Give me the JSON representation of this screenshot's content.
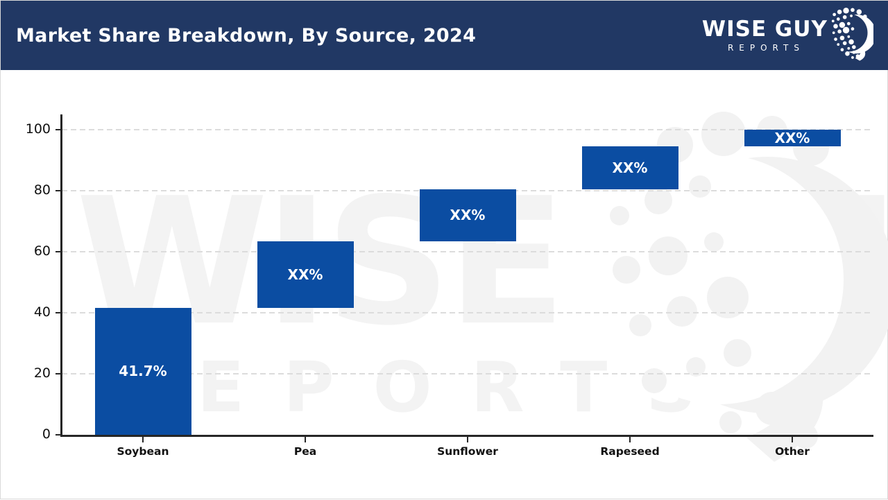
{
  "header": {
    "title": "Market Share Breakdown, By Source, 2024",
    "bg_color": "#213864",
    "logo": {
      "wordmark": "WISE GUY",
      "subtext": "REPORTS"
    }
  },
  "watermark": {
    "line1": "WISE GUY",
    "line2": "REPORTS"
  },
  "chart_data": {
    "type": "bar",
    "variant": "waterfall",
    "title": "Market Share Breakdown, By Source, 2024",
    "categories": [
      "Soybean",
      "Pea",
      "Sunflower",
      "Rapeseed",
      "Other"
    ],
    "series": [
      {
        "name": "Market share (%)",
        "segments": [
          {
            "category": "Soybean",
            "start": 0,
            "end": 41.7,
            "value": 41.7,
            "label": "41.7%"
          },
          {
            "category": "Pea",
            "start": 41.7,
            "end": 63.5,
            "value": 21.8,
            "label": "XX%"
          },
          {
            "category": "Sunflower",
            "start": 63.5,
            "end": 80.5,
            "value": 17.0,
            "label": "XX%"
          },
          {
            "category": "Rapeseed",
            "start": 80.5,
            "end": 94.5,
            "value": 14.0,
            "label": "XX%"
          },
          {
            "category": "Other",
            "start": 94.5,
            "end": 100.0,
            "value": 5.5,
            "label": "XX%"
          }
        ]
      }
    ],
    "xlabel": "",
    "ylabel": "",
    "y_ticks": [
      0,
      20,
      40,
      60,
      80,
      100
    ],
    "ylim": [
      0,
      105
    ],
    "grid": "horizontal-dashed",
    "legend": "none",
    "bar_color": "#0b4da2",
    "bar_label_color": "#ffffff",
    "axis_color": "#262626",
    "grid_color": "#dcdcdc"
  }
}
